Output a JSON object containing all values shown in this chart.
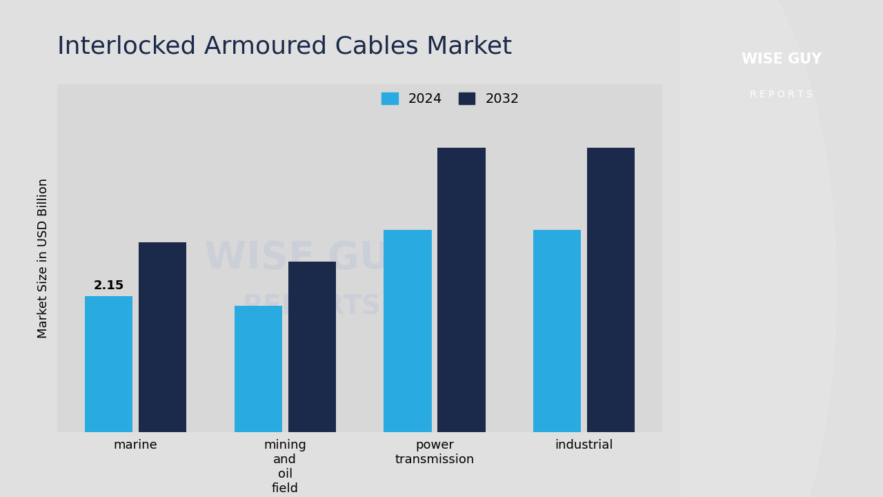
{
  "title": "Interlocked Armoured Cables Market",
  "ylabel": "Market Size in USD Billion",
  "categories": [
    "marine",
    "mining\nand\noil\nfield",
    "power\ntransmission",
    "industrial"
  ],
  "values_2024": [
    2.15,
    2.0,
    3.2,
    3.2
  ],
  "values_2032": [
    3.0,
    2.7,
    4.5,
    4.5
  ],
  "color_2024": "#29ABE2",
  "color_2032": "#1B2A4A",
  "annotation_text": "2.15",
  "annotation_bar": 0,
  "bg_color": "#E0E0E0",
  "plot_bg_color": "#D8D8D8",
  "title_color": "#1B2A4A",
  "legend_labels": [
    "2024",
    "2032"
  ],
  "title_fontsize": 26,
  "ylabel_fontsize": 13,
  "tick_fontsize": 13,
  "annot_fontsize": 13,
  "sidebar_color": "#1B2B4B",
  "ylim": [
    0,
    5.5
  ],
  "bar_width": 0.32,
  "bar_gap": 0.04,
  "logo_line1": "WISE GUY",
  "logo_line2": "R E P O R T S"
}
